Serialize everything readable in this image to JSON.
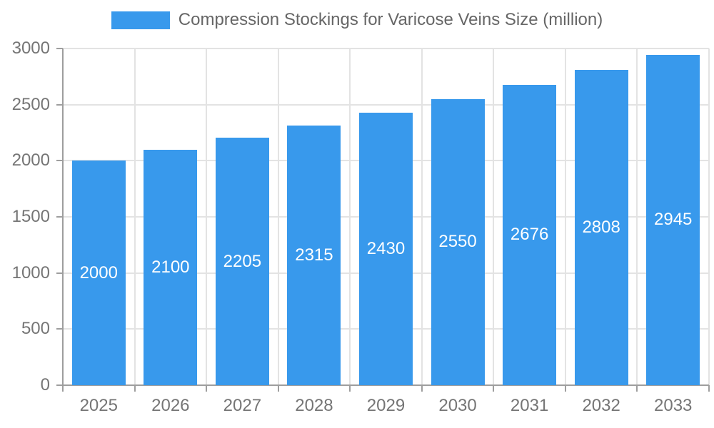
{
  "chart_data": {
    "type": "bar",
    "title": "Compression Stockings for Varicose Veins Size (million)",
    "legend_label": "Compression Stockings for Varicose Veins Size (million)",
    "categories": [
      "2025",
      "2026",
      "2027",
      "2028",
      "2029",
      "2030",
      "2031",
      "2032",
      "2033"
    ],
    "values": [
      2000,
      2100,
      2205,
      2315,
      2430,
      2550,
      2676,
      2808,
      2945
    ],
    "value_labels": [
      "2000",
      "2100",
      "2205",
      "2315",
      "2430",
      "2550",
      "2676",
      "2808",
      "2945"
    ],
    "xlabel": "",
    "ylabel": "",
    "ylim": [
      0,
      3000
    ],
    "yticks": [
      0,
      500,
      1000,
      1500,
      2000,
      2500,
      3000
    ],
    "ytick_labels": [
      "0",
      "500",
      "1000",
      "1500",
      "2000",
      "2500",
      "3000"
    ],
    "grid": true,
    "legend_position": "top",
    "colors": {
      "bar": "#3899EC",
      "grid": "#e3e3e3",
      "axis": "#9e9e9e",
      "tick_label": "#757575",
      "title": "#666666",
      "value_label": "#ffffff"
    }
  }
}
